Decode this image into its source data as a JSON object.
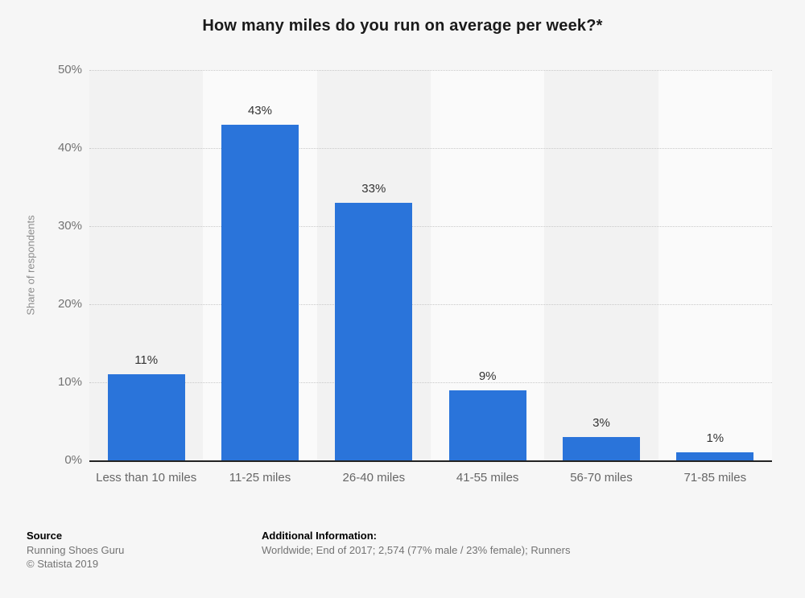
{
  "title": "How many miles do you run on average per week?*",
  "chart_data": {
    "type": "bar",
    "title": "How many miles do you run on average per week?*",
    "categories": [
      "Less than 10 miles",
      "11-25 miles",
      "26-40 miles",
      "41-55 miles",
      "56-70 miles",
      "71-85 miles"
    ],
    "values": [
      11,
      43,
      33,
      9,
      3,
      1
    ],
    "value_labels": [
      "11%",
      "43%",
      "33%",
      "9%",
      "3%",
      "1%"
    ],
    "xlabel": "",
    "ylabel": "Share of respondents",
    "ylim": [
      0,
      50
    ],
    "ytick_interval": 10,
    "ytick_labels": [
      "0%",
      "10%",
      "20%",
      "30%",
      "40%",
      "50%"
    ],
    "grid": "horizontal-dotted",
    "legend": "none",
    "bar_color": "#2a74da"
  },
  "colors": {
    "page_background": "#f6f6f6",
    "band_dark": "#f2f2f2",
    "band_light": "#fafafa",
    "bar": "#2a74da",
    "axis_line": "#222222",
    "gridline": "#c9c9c9",
    "title_text": "#1a1a1a",
    "value_text": "#333333",
    "tick_text": "#737373",
    "category_text": "#666666"
  },
  "footer": {
    "source_heading": "Source",
    "source_line1": "Running Shoes Guru",
    "source_line2": "© Statista 2019",
    "additional_heading": "Additional Information:",
    "additional_text": "Worldwide; End of 2017; 2,574 (77% male / 23% female); Runners"
  }
}
